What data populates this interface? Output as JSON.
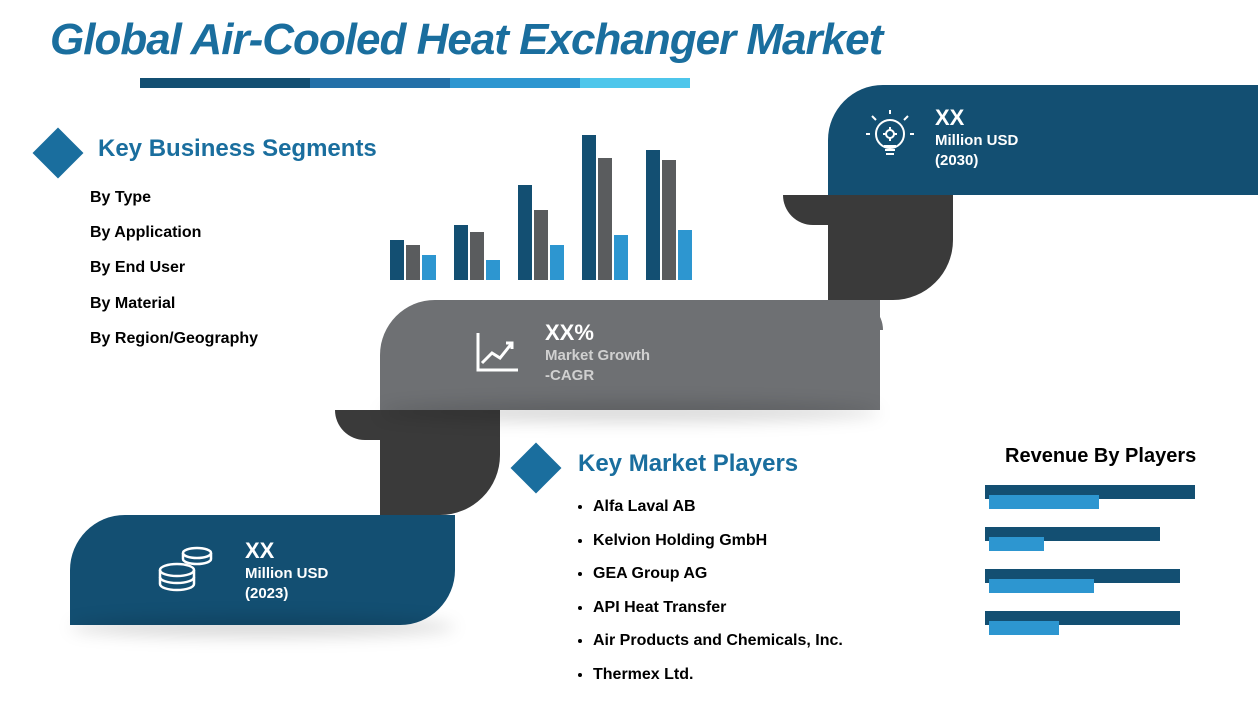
{
  "title": {
    "text": "Global Air-Cooled Heat Exchanger Market",
    "color": "#1a6e9e",
    "fontsize": 44
  },
  "underline_colors": [
    "#134f72",
    "#2470a8",
    "#2d96d0",
    "#4ec6eb"
  ],
  "underline_widths": [
    170,
    140,
    130,
    110
  ],
  "segments": {
    "heading": "Key Business Segments",
    "heading_color": "#1a6e9e",
    "items": [
      "By Type",
      "By Application",
      "By End User",
      "By Material",
      "By Region/Geography"
    ]
  },
  "bar_chart": {
    "type": "bar",
    "colors": [
      "#134f72",
      "#5a5c5e",
      "#2d96d0"
    ],
    "groups": [
      [
        40,
        35,
        25
      ],
      [
        55,
        48,
        20
      ],
      [
        95,
        70,
        35
      ],
      [
        145,
        122,
        45
      ],
      [
        130,
        120,
        50
      ]
    ]
  },
  "ribbon": {
    "top": {
      "bg": "#134f72",
      "icon": "lightbulb",
      "value": "XX",
      "unit": "Million USD",
      "year": "(2030)"
    },
    "mid": {
      "bg": "#6e7073",
      "icon": "growth",
      "value": "XX%",
      "label1": "Market Growth",
      "label2": "-CAGR"
    },
    "bottom": {
      "bg": "#134f72",
      "icon": "coins",
      "value": "XX",
      "unit": "Million USD",
      "year": "(2023)"
    },
    "dark_bg": "#3a3a3a"
  },
  "players": {
    "heading": "Key Market Players",
    "heading_color": "#1a6e9e",
    "items": [
      "Alfa Laval AB",
      "Kelvion Holding GmbH",
      "GEA Group AG",
      "API Heat Transfer",
      "Air Products and Chemicals, Inc.",
      "Thermex Ltd."
    ]
  },
  "revenue": {
    "title": "Revenue By Players",
    "colors": {
      "dark": "#134f72",
      "light": "#2d96d0"
    },
    "rows": [
      {
        "dark": 210,
        "light": 110
      },
      {
        "dark": 175,
        "light": 55
      },
      {
        "dark": 195,
        "light": 105
      },
      {
        "dark": 195,
        "light": 70
      }
    ]
  }
}
